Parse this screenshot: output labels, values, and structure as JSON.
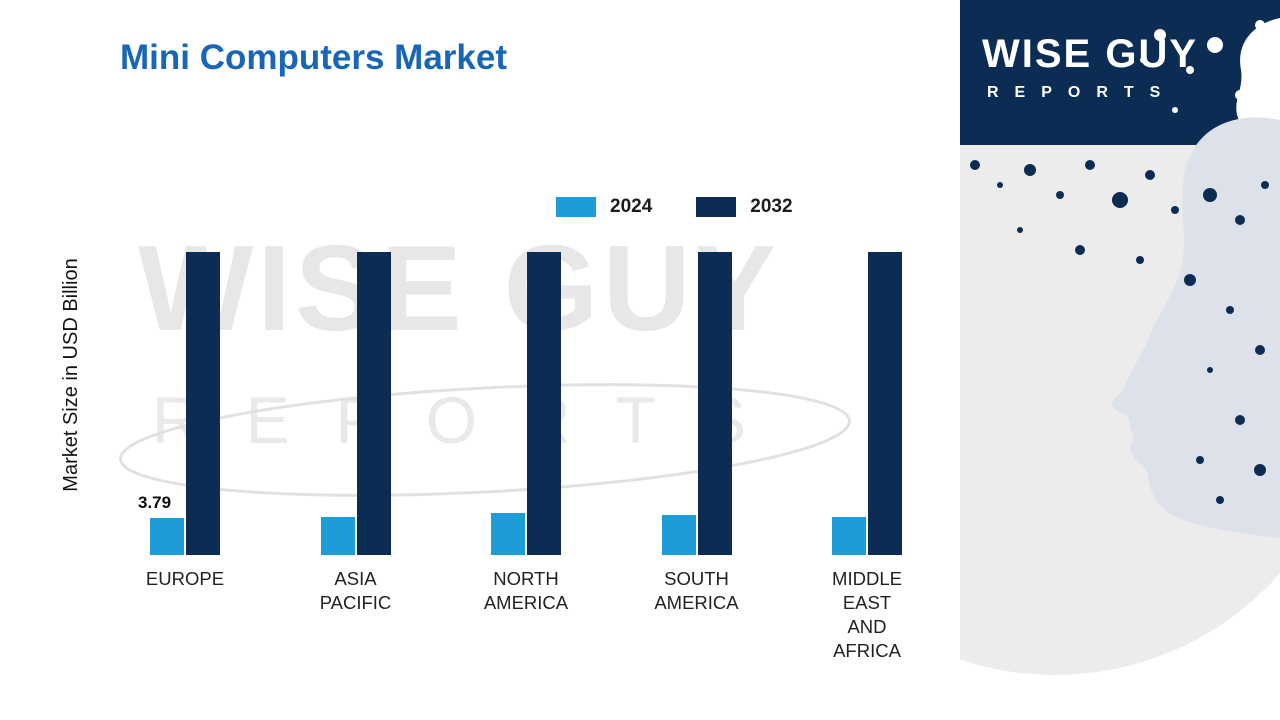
{
  "title": {
    "text": "Mini Computers Market",
    "color": "#1767b6"
  },
  "logo": {
    "line1": "WISE GUY",
    "line2": "REPORTS",
    "bg_color": "#0d2c54"
  },
  "watermark": {
    "line1": "WISE GUY",
    "line2": "REPORTS"
  },
  "legend": [
    {
      "label": "2024",
      "color": "#1d9cd8"
    },
    {
      "label": "2032",
      "color": "#0d2c54"
    }
  ],
  "chart_data": {
    "type": "bar",
    "title": "Mini Computers Market",
    "ylabel": "Market Size in USD Billion",
    "ylim": [
      0,
      31
    ],
    "grid": false,
    "legend_position": "top",
    "categories": [
      {
        "name": "EUROPE",
        "lines": [
          "EUROPE"
        ]
      },
      {
        "name": "ASIA PACIFIC",
        "lines": [
          "ASIA",
          "PACIFIC"
        ]
      },
      {
        "name": "NORTH AMERICA",
        "lines": [
          "NORTH",
          "AMERICA"
        ]
      },
      {
        "name": "SOUTH AMERICA",
        "lines": [
          "SOUTH",
          "AMERICA"
        ]
      },
      {
        "name": "MIDDLE EAST AND AFRICA",
        "lines": [
          "MIDDLE",
          "EAST",
          "AND",
          "AFRICA"
        ]
      }
    ],
    "series": [
      {
        "name": "2024",
        "color": "#1d9cd8",
        "values": [
          3.79,
          3.9,
          4.3,
          4.1,
          3.9
        ]
      },
      {
        "name": "2032",
        "color": "#0d2c54",
        "values": [
          31,
          31,
          31,
          31,
          31
        ]
      }
    ],
    "data_labels": [
      {
        "series_index": 0,
        "category_index": 0,
        "text": "3.79"
      }
    ]
  }
}
